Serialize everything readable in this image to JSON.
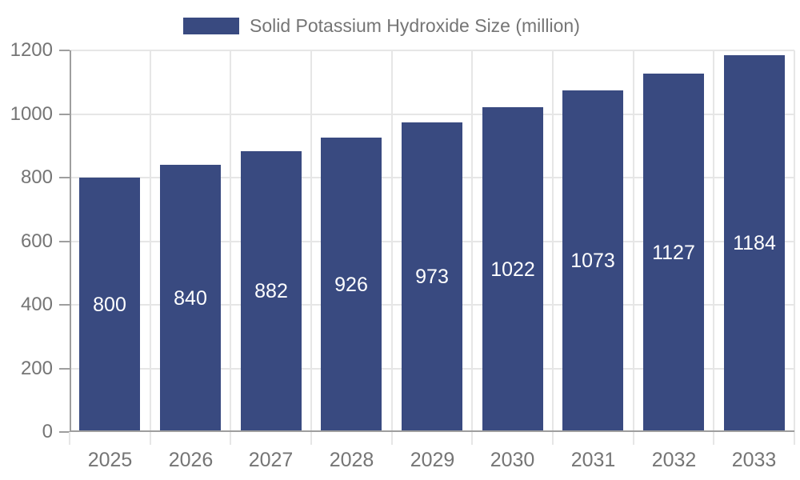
{
  "legend": {
    "label": "Solid Potassium Hydroxide Size (million)"
  },
  "chart_data": {
    "type": "bar",
    "title": "",
    "categories": [
      "2025",
      "2026",
      "2027",
      "2028",
      "2029",
      "2030",
      "2031",
      "2032",
      "2033"
    ],
    "series": [
      {
        "name": "Solid Potassium Hydroxide Size (million)",
        "values": [
          800,
          840,
          882,
          926,
          973,
          1022,
          1073,
          1127,
          1184
        ]
      }
    ],
    "value_labels": [
      "800",
      "840",
      "882",
      "926",
      "973",
      "1022",
      "1073",
      "1127",
      "1184"
    ],
    "xlabel": "",
    "ylabel": "",
    "ylim": [
      0,
      1200
    ],
    "ytick_step": 200,
    "ytick_labels": [
      "0",
      "200",
      "400",
      "600",
      "800",
      "1000",
      "1200"
    ],
    "grid": true,
    "legend_position": "top",
    "bar_color": "#394A80",
    "value_label_color": "#ffffff",
    "grid_color": "#e6e6e6",
    "axis_color": "#9e9e9e",
    "tick_text_color": "#757575"
  }
}
